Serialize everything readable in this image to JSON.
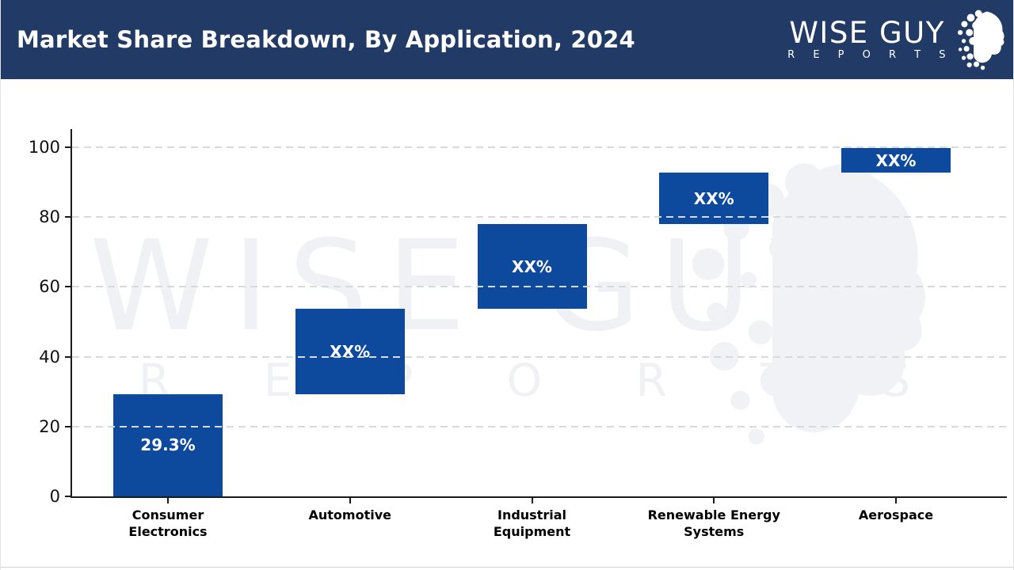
{
  "header": {
    "title": "Market Share Breakdown, By Application, 2024",
    "logo": {
      "wordmark": "WISE GUY",
      "subtitle": "R E P O R T S"
    }
  },
  "watermark": {
    "line1": "WISE GUY",
    "line2": "R E P O R T S"
  },
  "colors": {
    "header_bg": "#213a66",
    "header_text": "#ffffff",
    "bar_fill": "#0d4a9e",
    "bar_label_text": "#ffffff",
    "axis_line": "#1a1a1a",
    "axis_text": "#111111",
    "gridline": "#d9d9d9",
    "watermark_tint": "#f0f1f4",
    "page_bg": "#ffffff"
  },
  "chart_data": {
    "type": "bar",
    "subtype": "waterfall",
    "title": "Market Share Breakdown, By Application, 2024",
    "categories": [
      "Consumer Electronics",
      "Automotive",
      "Industrial Equipment",
      "Renewable Energy Systems",
      "Aerospace"
    ],
    "category_lines": [
      [
        "Consumer",
        "Electronics"
      ],
      [
        "Automotive"
      ],
      [
        "Industrial",
        "Equipment"
      ],
      [
        "Renewable Energy",
        "Systems"
      ],
      [
        "Aerospace"
      ]
    ],
    "segments": [
      {
        "category": "Consumer Electronics",
        "label": "29.3%",
        "start": 0,
        "end": 29.3
      },
      {
        "category": "Automotive",
        "label": "XX%",
        "start": 29.3,
        "end": 53.7
      },
      {
        "category": "Industrial Equipment",
        "label": "XX%",
        "start": 53.7,
        "end": 78.0
      },
      {
        "category": "Renewable Energy Systems",
        "label": "XX%",
        "start": 78.0,
        "end": 92.7
      },
      {
        "category": "Aerospace",
        "label": "XX%",
        "start": 92.7,
        "end": 99.8
      }
    ],
    "xlabel": "",
    "ylabel": "",
    "ylim": [
      0,
      105
    ],
    "yticks": [
      0,
      20,
      40,
      60,
      80,
      100
    ],
    "grid": "horizontal-dashed",
    "legend": "none",
    "units": "percent"
  }
}
